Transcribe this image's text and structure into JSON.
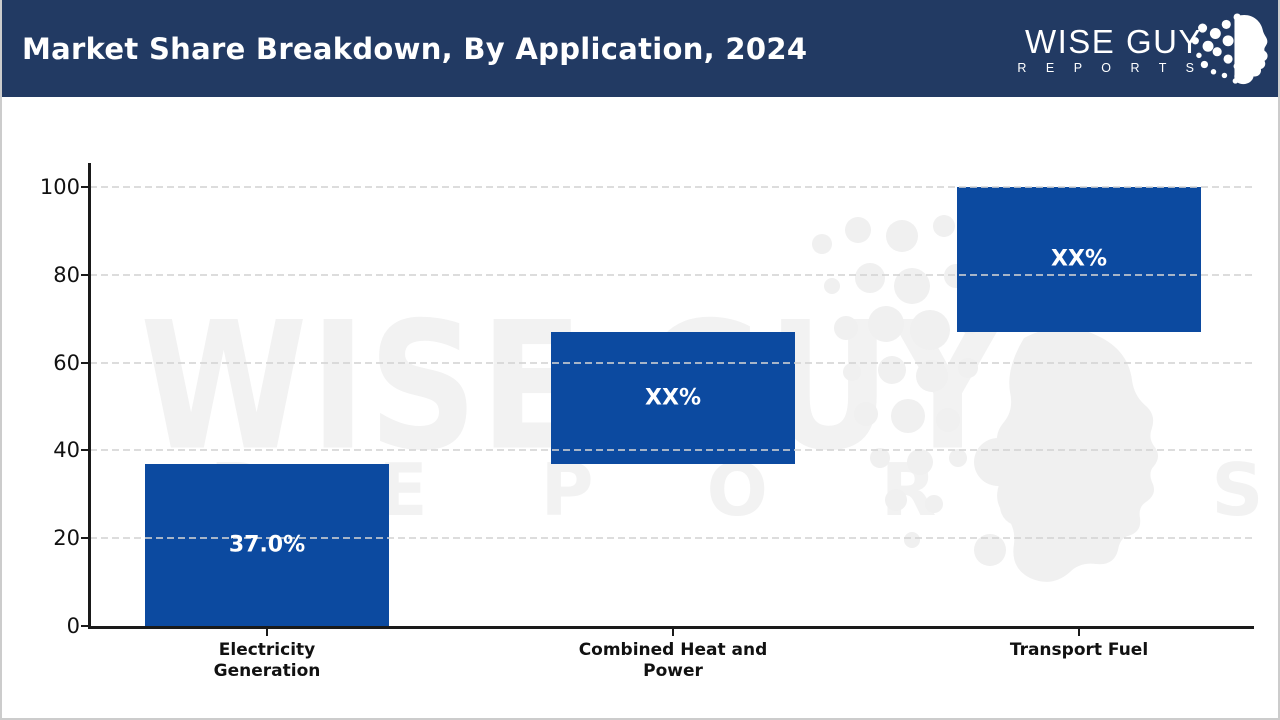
{
  "header": {
    "title": "Market Share Breakdown, By Application, 2024",
    "brand": {
      "name": "WISE GUY",
      "subtitle": "R E P O R T S"
    }
  },
  "watermark": {
    "line1": "WISE GUY",
    "line2": "R E P O R T S"
  },
  "chart_data": {
    "type": "bar",
    "variant": "floating-waterfall",
    "title": "Market Share Breakdown, By Application, 2024",
    "xlabel": "",
    "ylabel": "",
    "ylim": [
      0,
      105
    ],
    "yticks": [
      0,
      20,
      40,
      60,
      80,
      100
    ],
    "grid": "horizontal dashed, drawn over bars",
    "legend": "none",
    "categories": [
      "Electricity Generation",
      "Combined Heat and Power",
      "Transport Fuel"
    ],
    "categories_display": [
      [
        "Electricity",
        "Generation"
      ],
      [
        "Combined Heat and",
        "Power"
      ],
      [
        "Transport Fuel"
      ]
    ],
    "segments": [
      {
        "category": "Electricity Generation",
        "start": 0,
        "end": 37,
        "label": "37.0%"
      },
      {
        "category": "Combined Heat and Power",
        "start": 37,
        "end": 67,
        "label": "XX%"
      },
      {
        "category": "Transport Fuel",
        "start": 67,
        "end": 100,
        "label": "XX%"
      }
    ],
    "bar_color": "#0c4aa0",
    "label_color": "#ffffff"
  },
  "colors": {
    "header_bg": "#223a63",
    "plot_bg": "#ffffff",
    "axis": "#1a1a1a",
    "tick_label": "#111111",
    "grid": "#d3d3d3",
    "watermark": "#f2f2f2",
    "watermark_dots": "#f0f0f0",
    "border": "#cccccc"
  }
}
